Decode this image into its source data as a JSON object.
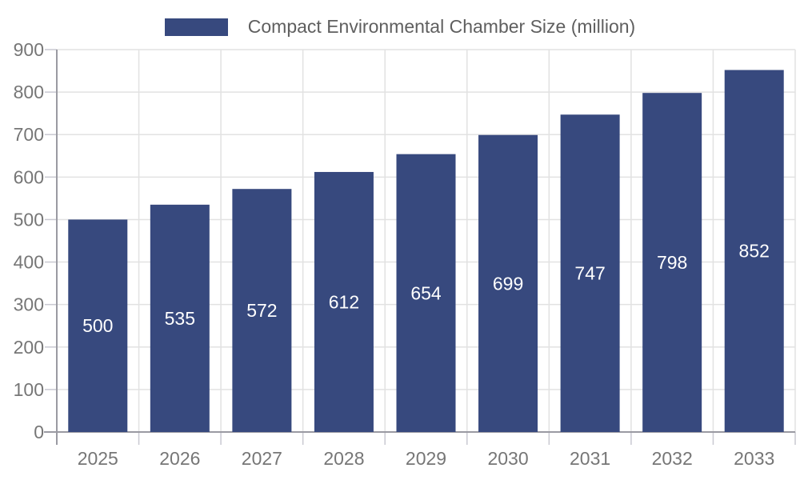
{
  "chart_data": {
    "type": "bar",
    "title": "Compact Environmental Chamber Size (million)",
    "categories": [
      "2025",
      "2026",
      "2027",
      "2028",
      "2029",
      "2030",
      "2031",
      "2032",
      "2033"
    ],
    "values": [
      500,
      535,
      572,
      612,
      654,
      699,
      747,
      798,
      852
    ],
    "xlabel": "",
    "ylabel": "",
    "ylim": [
      0,
      900
    ],
    "yticks": [
      0,
      100,
      200,
      300,
      400,
      500,
      600,
      700,
      800,
      900
    ],
    "grid": true,
    "legend_position": "top",
    "colors": {
      "bar": "#37497E",
      "value_label": "#FFFFFF",
      "axis_text": "#767676",
      "legend_text": "#5F5F5F",
      "axis_line": "#9A9AA2",
      "gridline": "#E2E2E2",
      "tick": "#C9C9D1"
    }
  }
}
